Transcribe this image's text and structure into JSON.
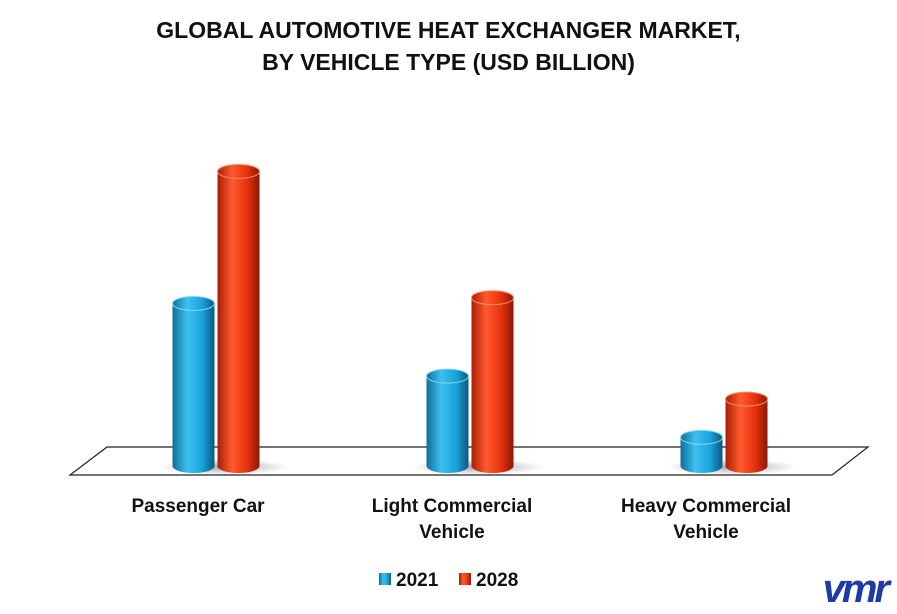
{
  "brand": {
    "logo_text": "vmr"
  },
  "chart_data": {
    "type": "bar",
    "title": "GLOBAL AUTOMOTIVE HEAT EXCHANGER MARKET,",
    "subtitle": "BY VEHICLE TYPE (USD BILLION)",
    "categories": [
      "Passenger Car",
      "Light Commercial Vehicle",
      "Heavy Commercial Vehicle"
    ],
    "series": [
      {
        "name": "2021",
        "color": "#1aa3db",
        "values": [
          8.5,
          4.7,
          1.5
        ]
      },
      {
        "name": "2028",
        "color": "#e8320c",
        "values": [
          15.4,
          8.8,
          3.5
        ]
      }
    ],
    "ylim": [
      0,
      16
    ],
    "grid": false,
    "legend_position": "bottom-center"
  }
}
